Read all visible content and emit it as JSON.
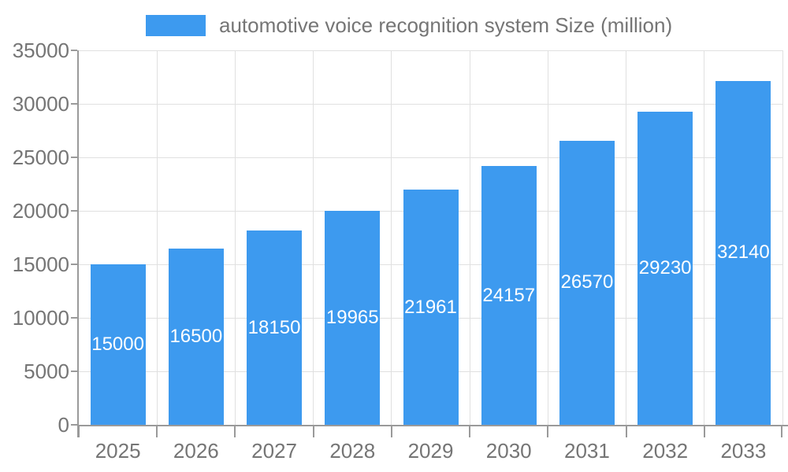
{
  "legend": {
    "label": "automotive voice recognition system Size (million)"
  },
  "colors": {
    "bar": "#3d9aef",
    "grid": "#e0e0e0",
    "axis": "#9a9a9a",
    "label": "#757575",
    "value_label": "#ffffff"
  },
  "chart_data": {
    "type": "bar",
    "title": "",
    "xlabel": "",
    "ylabel": "",
    "categories": [
      "2025",
      "2026",
      "2027",
      "2028",
      "2029",
      "2030",
      "2031",
      "2032",
      "2033"
    ],
    "values": [
      15000,
      16500,
      18150,
      19965,
      21961,
      24157,
      26570,
      29230,
      32140
    ],
    "series_name": "automotive voice recognition system Size (million)",
    "bar_value_labels": [
      "15000",
      "16500",
      "18150",
      "19965",
      "21961",
      "24157",
      "26570",
      "29230",
      "32140"
    ],
    "y_tick_labels": [
      "0",
      "5000",
      "10000",
      "15000",
      "20000",
      "25000",
      "30000",
      "35000"
    ],
    "ylim": [
      0,
      35000
    ],
    "ytick_step": 5000,
    "grid": true,
    "legend_position": "top"
  }
}
